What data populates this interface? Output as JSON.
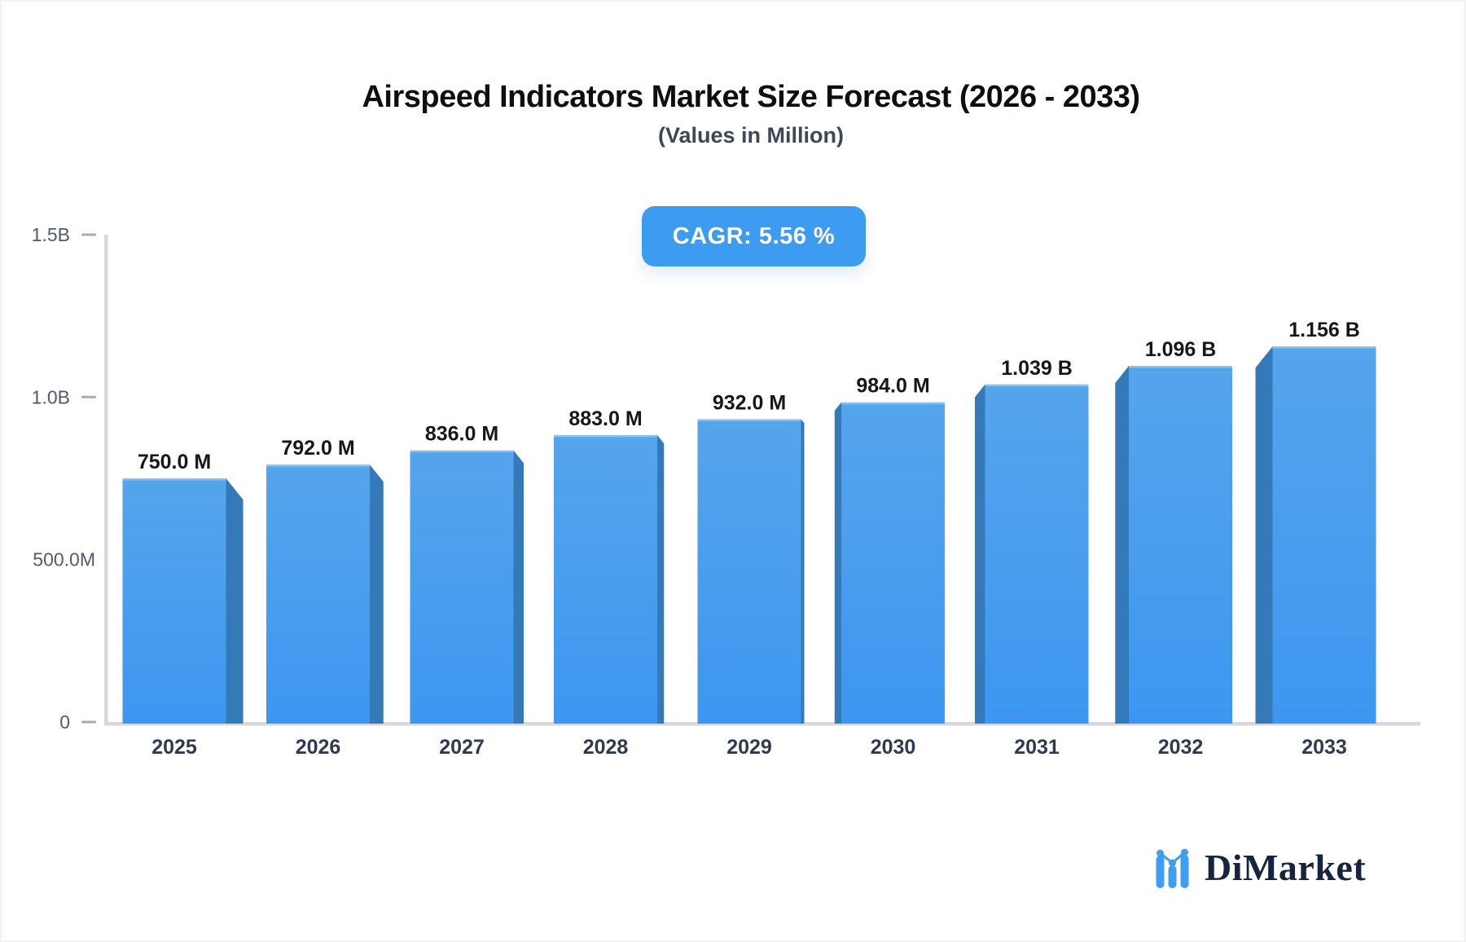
{
  "header": {
    "title": "Airspeed Indicators Market Size Forecast (2026 - 2033)",
    "subtitle": "(Values in Million)",
    "cagr_label": "CAGR: 5.56 %"
  },
  "branding": {
    "logo_text": "DiMarket",
    "logo_icon": "bar-line-chart-icon"
  },
  "chart_data": {
    "type": "bar",
    "title": "Airspeed Indicators Market Size Forecast (2026 - 2033)",
    "subtitle": "(Values in Million)",
    "cagr_percent": 5.56,
    "categories": [
      "2025",
      "2026",
      "2027",
      "2028",
      "2029",
      "2030",
      "2031",
      "2032",
      "2033"
    ],
    "values_millions": [
      750,
      792,
      836,
      883,
      932,
      984,
      1039,
      1096,
      1156
    ],
    "value_labels": [
      "750.0 M",
      "792.0 M",
      "836.0 M",
      "883.0 M",
      "932.0 M",
      "984.0 M",
      "1.039 B",
      "1.096 B",
      "1.156 B"
    ],
    "y_ticks": [
      {
        "label": "0",
        "value": 0,
        "dash": true
      },
      {
        "label": "500.0M",
        "value": 500,
        "dash": false
      },
      {
        "label": "1.0B",
        "value": 1000,
        "dash": true
      },
      {
        "label": "1.5B",
        "value": 1500,
        "dash": true
      }
    ],
    "ylim": [
      0,
      1500
    ],
    "grid": false,
    "legend": "none",
    "colors": {
      "bar_top": "#55a5ec",
      "bar_bottom": "#3d96f0",
      "bar_side": "#347ab8",
      "axis_line": "#d8d8dc",
      "tick_dash": "#aaaab0",
      "value_label": "#14171c",
      "x_label": "#2c3a52",
      "y_label": "#4e5a70",
      "badge_bg": "#3d9bf0",
      "badge_text": "#ffffff",
      "logo_blue": "#3f9df2",
      "logo_navy": "#152440"
    }
  }
}
